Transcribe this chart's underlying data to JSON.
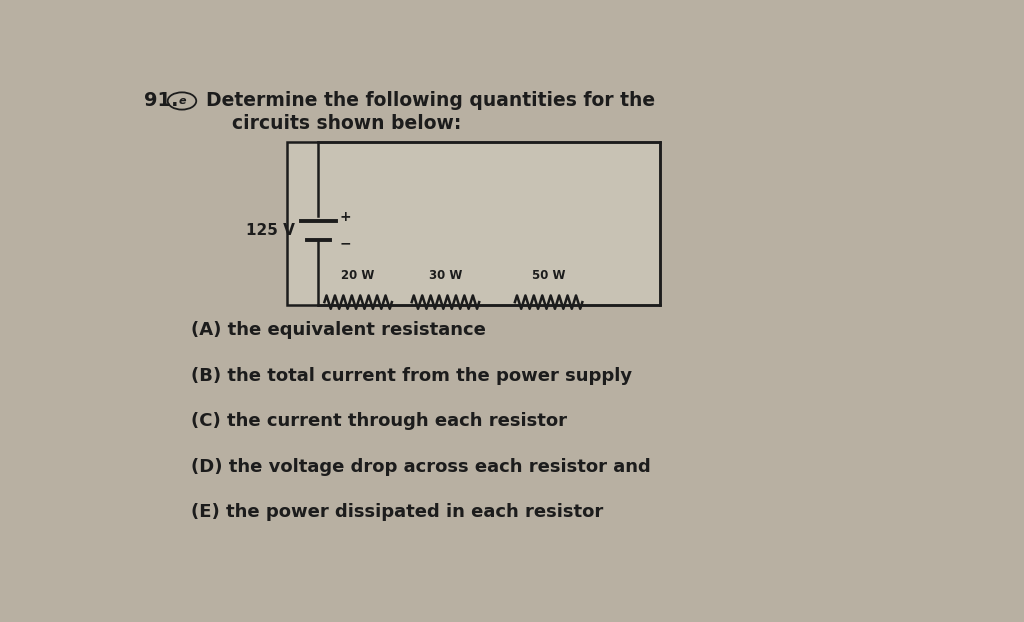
{
  "bg_color": "#b8b0a2",
  "text_color": "#1c1c1c",
  "circuit_line_color": "#1c1c1c",
  "circuit_bg": "#c8c2b4",
  "voltage_label": "125 V",
  "resistor_labels": [
    "20 W",
    "30 W",
    "50 W"
  ],
  "items": [
    "(A) the equivalent resistance",
    "(B) the total current from the power supply",
    "(C) the current through each resistor",
    "(D) the voltage drop across each resistor and",
    "(E) the power dissipated in each resistor"
  ],
  "title_line1": "Determine the following quantities for the",
  "title_line2": "    circuits shown below:",
  "num_label": "91.",
  "circle_letter": "e"
}
